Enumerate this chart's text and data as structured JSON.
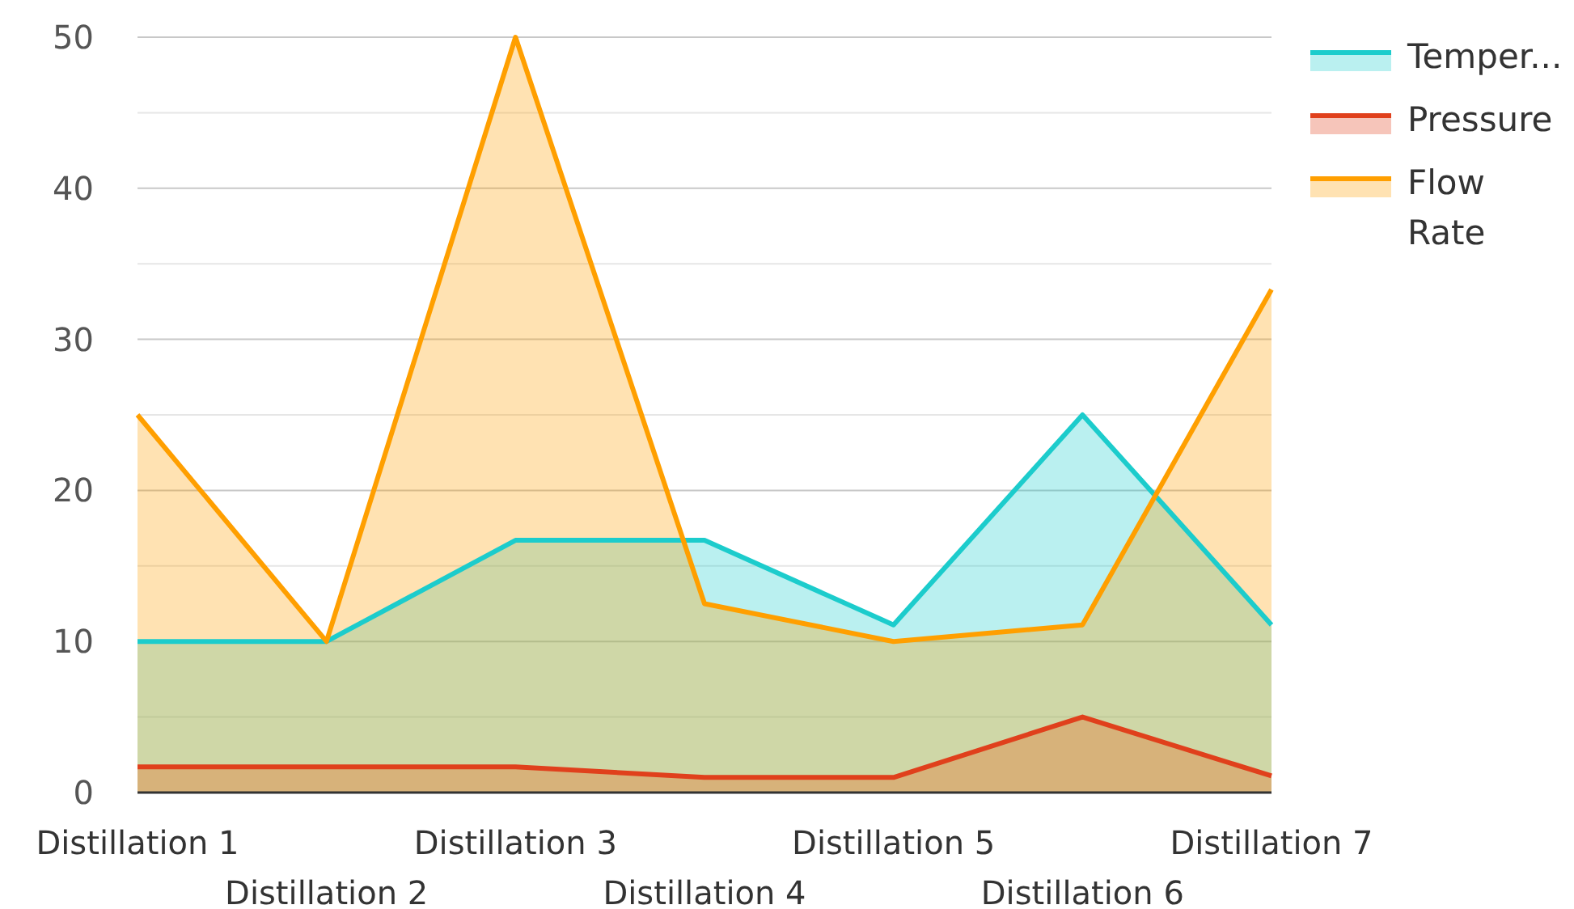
{
  "chart_data": {
    "type": "area",
    "categories": [
      "Distillation 1",
      "Distillation 2",
      "Distillation 3",
      "Distillation 4",
      "Distillation 5",
      "Distillation 6",
      "Distillation 7"
    ],
    "series": [
      {
        "name": "Temper...",
        "color": "#1ccccc",
        "values": [
          10,
          10,
          16.7,
          16.7,
          11.1,
          25,
          11.1
        ]
      },
      {
        "name": "Pressure",
        "color": "#e0401c",
        "values": [
          1.7,
          1.7,
          1.7,
          1,
          1,
          5,
          1.1
        ]
      },
      {
        "name": "Flow Rate",
        "color": "#ff9f00",
        "values": [
          25,
          10,
          50,
          12.5,
          10,
          11.1,
          33.3
        ]
      }
    ],
    "ylim": [
      0,
      50
    ],
    "yticks": [
      0,
      {
        "value": 5,
        "label": null
      },
      10,
      {
        "value": 15,
        "label": null
      },
      20,
      {
        "value": 25,
        "label": null
      },
      30,
      {
        "value": 35,
        "label": null
      },
      40,
      {
        "value": 45,
        "label": null
      },
      50
    ],
    "grid": "y",
    "legend": "top right"
  }
}
